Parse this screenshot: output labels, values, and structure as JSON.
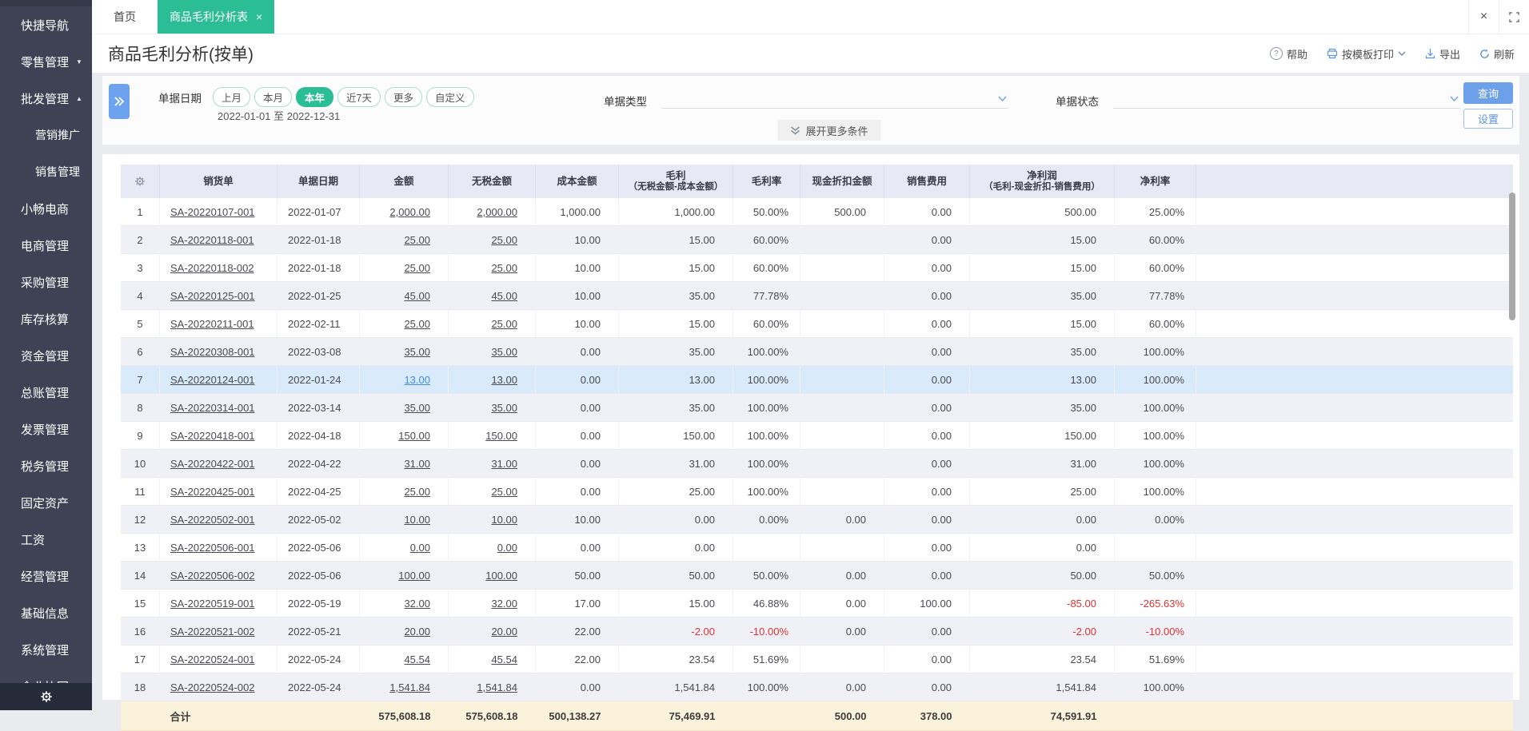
{
  "sidebar": {
    "items": [
      {
        "label": "快捷导航"
      },
      {
        "label": "零售管理",
        "arrow": "down"
      },
      {
        "label": "批发管理",
        "arrow": "up"
      },
      {
        "label": "营销推广",
        "sub": true
      },
      {
        "label": "销售管理",
        "sub": true
      },
      {
        "label": "小畅电商"
      },
      {
        "label": "电商管理"
      },
      {
        "label": "采购管理"
      },
      {
        "label": "库存核算"
      },
      {
        "label": "资金管理"
      },
      {
        "label": "总账管理"
      },
      {
        "label": "发票管理"
      },
      {
        "label": "税务管理"
      },
      {
        "label": "固定资产"
      },
      {
        "label": "工资"
      },
      {
        "label": "经营管理"
      },
      {
        "label": "基础信息"
      },
      {
        "label": "系统管理"
      },
      {
        "label": "企业协同"
      }
    ]
  },
  "tabs": {
    "home": "首页",
    "active": "商品毛利分析表"
  },
  "icons": {
    "close": "×",
    "tab_close": "×",
    "help": "?",
    "gear": "gear-shape",
    "fullscreen": "corner-brackets",
    "collapse": "double-chevron-right",
    "expand_more": "double-chevron-down"
  },
  "page": {
    "title": "商品毛利分析(按单)"
  },
  "toolbar": {
    "help": "帮助",
    "print": "按模板打印",
    "export": "导出",
    "refresh": "刷新"
  },
  "filters": {
    "date_label": "单据日期",
    "date_pills": [
      {
        "label": "上月",
        "selected": false
      },
      {
        "label": "本月",
        "selected": false
      },
      {
        "label": "本年",
        "selected": true
      },
      {
        "label": "近7天",
        "selected": false
      },
      {
        "label": "更多",
        "selected": false
      },
      {
        "label": "自定义",
        "selected": false
      }
    ],
    "date_range": "2022-01-01 至 2022-12-31",
    "doc_type_label": "单据类型",
    "doc_status_label": "单据状态",
    "search_button": "查询",
    "settings_button": "设置",
    "expand_more": "展开更多条件"
  },
  "table": {
    "columns": [
      {
        "label": "",
        "icon": "gear"
      },
      {
        "label": "销货单"
      },
      {
        "label": "单据日期"
      },
      {
        "label": "金额"
      },
      {
        "label": "无税金额"
      },
      {
        "label": "成本金额"
      },
      {
        "label": "毛利",
        "sub": "（无税金额-成本金额）"
      },
      {
        "label": "毛利率"
      },
      {
        "label": "现金折扣金额"
      },
      {
        "label": "销售费用"
      },
      {
        "label": "净利润",
        "sub": "（毛利-现金折扣-销售费用）"
      },
      {
        "label": "净利率"
      },
      {
        "label": ""
      }
    ],
    "rows": [
      {
        "num": "1",
        "doc": "SA-20220107-001",
        "date": "2022-01-07",
        "amount": "2,000.00",
        "tax_free": "2,000.00",
        "cost": "1,000.00",
        "gross": "1,000.00",
        "gross_rate": "50.00%",
        "cash_discount": "500.00",
        "selling_expense": "0.00",
        "net_profit": "500.00",
        "net_rate": "25.00%"
      },
      {
        "num": "2",
        "doc": "SA-20220118-001",
        "date": "2022-01-18",
        "amount": "25.00",
        "tax_free": "25.00",
        "cost": "10.00",
        "gross": "15.00",
        "gross_rate": "60.00%",
        "cash_discount": "",
        "selling_expense": "0.00",
        "net_profit": "15.00",
        "net_rate": "60.00%"
      },
      {
        "num": "3",
        "doc": "SA-20220118-002",
        "date": "2022-01-18",
        "amount": "25.00",
        "tax_free": "25.00",
        "cost": "10.00",
        "gross": "15.00",
        "gross_rate": "60.00%",
        "cash_discount": "",
        "selling_expense": "0.00",
        "net_profit": "15.00",
        "net_rate": "60.00%"
      },
      {
        "num": "4",
        "doc": "SA-20220125-001",
        "date": "2022-01-25",
        "amount": "45.00",
        "tax_free": "45.00",
        "cost": "10.00",
        "gross": "35.00",
        "gross_rate": "77.78%",
        "cash_discount": "",
        "selling_expense": "0.00",
        "net_profit": "35.00",
        "net_rate": "77.78%"
      },
      {
        "num": "5",
        "doc": "SA-20220211-001",
        "date": "2022-02-11",
        "amount": "25.00",
        "tax_free": "25.00",
        "cost": "10.00",
        "gross": "15.00",
        "gross_rate": "60.00%",
        "cash_discount": "",
        "selling_expense": "0.00",
        "net_profit": "15.00",
        "net_rate": "60.00%"
      },
      {
        "num": "6",
        "doc": "SA-20220308-001",
        "date": "2022-03-08",
        "amount": "35.00",
        "tax_free": "35.00",
        "cost": "0.00",
        "gross": "35.00",
        "gross_rate": "100.00%",
        "cash_discount": "",
        "selling_expense": "0.00",
        "net_profit": "35.00",
        "net_rate": "100.00%"
      },
      {
        "num": "7",
        "doc": "SA-20220124-001",
        "date": "2022-01-24",
        "amount": "13.00",
        "tax_free": "13.00",
        "cost": "0.00",
        "gross": "13.00",
        "gross_rate": "100.00%",
        "cash_discount": "",
        "selling_expense": "0.00",
        "net_profit": "13.00",
        "net_rate": "100.00%",
        "highlighted": true
      },
      {
        "num": "8",
        "doc": "SA-20220314-001",
        "date": "2022-03-14",
        "amount": "35.00",
        "tax_free": "35.00",
        "cost": "0.00",
        "gross": "35.00",
        "gross_rate": "100.00%",
        "cash_discount": "",
        "selling_expense": "0.00",
        "net_profit": "35.00",
        "net_rate": "100.00%"
      },
      {
        "num": "9",
        "doc": "SA-20220418-001",
        "date": "2022-04-18",
        "amount": "150.00",
        "tax_free": "150.00",
        "cost": "0.00",
        "gross": "150.00",
        "gross_rate": "100.00%",
        "cash_discount": "",
        "selling_expense": "0.00",
        "net_profit": "150.00",
        "net_rate": "100.00%"
      },
      {
        "num": "10",
        "doc": "SA-20220422-001",
        "date": "2022-04-22",
        "amount": "31.00",
        "tax_free": "31.00",
        "cost": "0.00",
        "gross": "31.00",
        "gross_rate": "100.00%",
        "cash_discount": "",
        "selling_expense": "0.00",
        "net_profit": "31.00",
        "net_rate": "100.00%"
      },
      {
        "num": "11",
        "doc": "SA-20220425-001",
        "date": "2022-04-25",
        "amount": "25.00",
        "tax_free": "25.00",
        "cost": "0.00",
        "gross": "25.00",
        "gross_rate": "100.00%",
        "cash_discount": "",
        "selling_expense": "0.00",
        "net_profit": "25.00",
        "net_rate": "100.00%"
      },
      {
        "num": "12",
        "doc": "SA-20220502-001",
        "date": "2022-05-02",
        "amount": "10.00",
        "tax_free": "10.00",
        "cost": "10.00",
        "gross": "0.00",
        "gross_rate": "0.00%",
        "cash_discount": "0.00",
        "selling_expense": "0.00",
        "net_profit": "0.00",
        "net_rate": "0.00%"
      },
      {
        "num": "13",
        "doc": "SA-20220506-001",
        "date": "2022-05-06",
        "amount": "0.00",
        "tax_free": "0.00",
        "cost": "0.00",
        "gross": "0.00",
        "gross_rate": "",
        "cash_discount": "",
        "selling_expense": "0.00",
        "net_profit": "0.00",
        "net_rate": ""
      },
      {
        "num": "14",
        "doc": "SA-20220506-002",
        "date": "2022-05-06",
        "amount": "100.00",
        "tax_free": "100.00",
        "cost": "50.00",
        "gross": "50.00",
        "gross_rate": "50.00%",
        "cash_discount": "0.00",
        "selling_expense": "0.00",
        "net_profit": "50.00",
        "net_rate": "50.00%"
      },
      {
        "num": "15",
        "doc": "SA-20220519-001",
        "date": "2022-05-19",
        "amount": "32.00",
        "tax_free": "32.00",
        "cost": "17.00",
        "gross": "15.00",
        "gross_rate": "46.88%",
        "cash_discount": "0.00",
        "selling_expense": "100.00",
        "net_profit": "-85.00",
        "net_rate": "-265.63%"
      },
      {
        "num": "16",
        "doc": "SA-20220521-002",
        "date": "2022-05-21",
        "amount": "20.00",
        "tax_free": "20.00",
        "cost": "22.00",
        "gross": "-2.00",
        "gross_rate": "-10.00%",
        "cash_discount": "0.00",
        "selling_expense": "0.00",
        "net_profit": "-2.00",
        "net_rate": "-10.00%"
      },
      {
        "num": "17",
        "doc": "SA-20220524-001",
        "date": "2022-05-24",
        "amount": "45.54",
        "tax_free": "45.54",
        "cost": "22.00",
        "gross": "23.54",
        "gross_rate": "51.69%",
        "cash_discount": "",
        "selling_expense": "0.00",
        "net_profit": "23.54",
        "net_rate": "51.69%"
      },
      {
        "num": "18",
        "doc": "SA-20220524-002",
        "date": "2022-05-24",
        "amount": "1,541.84",
        "tax_free": "1,541.84",
        "cost": "0.00",
        "gross": "1,541.84",
        "gross_rate": "100.00%",
        "cash_discount": "0.00",
        "selling_expense": "0.00",
        "net_profit": "1,541.84",
        "net_rate": "100.00%"
      }
    ],
    "total": {
      "label": "合计",
      "amount": "575,608.18",
      "tax_free": "575,608.18",
      "cost": "500,138.27",
      "gross": "75,469.91",
      "cash_discount": "500.00",
      "selling_expense": "378.00",
      "net_profit": "74,591.91"
    }
  },
  "colors": {
    "accent_green": "#2BBE96",
    "accent_blue": "#6CA0E8",
    "link_blue": "#3E8EE8",
    "negative_red": "#E03131",
    "sidebar_bg": "#3E4254",
    "header_row_bg": "#E7EAF4",
    "even_row_bg": "#F0F1F6",
    "highlight_row_bg": "#D9EAFB",
    "total_row_bg": "#FBF2DB"
  }
}
